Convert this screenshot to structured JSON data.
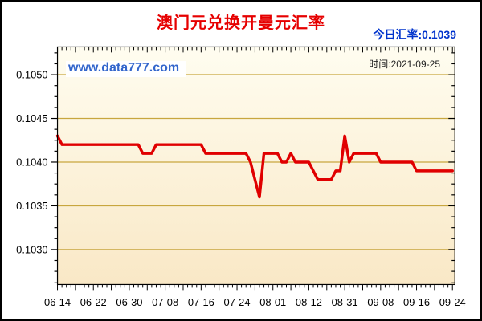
{
  "header": {
    "title": "澳门元兑换开曼元汇率",
    "today_rate_label": "今日汇率:",
    "today_rate_value": "0.1039"
  },
  "plot": {
    "watermark": "www.data777.com",
    "time_label": "时间:2021-09-25"
  },
  "colors": {
    "title": "#e60000",
    "today_rate": "#0033cc",
    "watermark": "#3366cc",
    "line": "#e00000",
    "grid": "#c8a63e",
    "axis": "#000000",
    "plot_bg_top": "#fffdf0",
    "plot_bg_bottom": "#f9e8c6",
    "time_label": "#222222"
  },
  "chart_data": {
    "type": "line",
    "title": "澳门元兑换开曼元汇率",
    "xlabel": "",
    "ylabel": "",
    "legend": "none",
    "grid": "horizontal-only",
    "x_labels": [
      "06-14",
      "06-22",
      "06-30",
      "07-08",
      "07-16",
      "07-24",
      "08-01",
      "08-12",
      "08-31",
      "09-08",
      "09-16",
      "09-24"
    ],
    "x_label_step": 8,
    "y_ticks": [
      0.105,
      0.1045,
      0.104,
      0.1035,
      0.103
    ],
    "ylim": [
      0.1026,
      0.10532
    ],
    "values": [
      0.1043,
      0.1042,
      0.1042,
      0.1042,
      0.1042,
      0.1042,
      0.1042,
      0.1042,
      0.1042,
      0.1042,
      0.1042,
      0.1042,
      0.1042,
      0.1042,
      0.1042,
      0.1042,
      0.1042,
      0.1042,
      0.1042,
      0.1041,
      0.1041,
      0.1041,
      0.1042,
      0.1042,
      0.1042,
      0.1042,
      0.1042,
      0.1042,
      0.1042,
      0.1042,
      0.1042,
      0.1042,
      0.1042,
      0.1041,
      0.1041,
      0.1041,
      0.1041,
      0.1041,
      0.1041,
      0.1041,
      0.1041,
      0.1041,
      0.1041,
      0.104,
      0.1038,
      0.1036,
      0.1041,
      0.1041,
      0.1041,
      0.1041,
      0.104,
      0.104,
      0.1041,
      0.104,
      0.104,
      0.104,
      0.104,
      0.1039,
      0.1038,
      0.1038,
      0.1038,
      0.1038,
      0.1039,
      0.1039,
      0.1043,
      0.104,
      0.1041,
      0.1041,
      0.1041,
      0.1041,
      0.1041,
      0.1041,
      0.104,
      0.104,
      0.104,
      0.104,
      0.104,
      0.104,
      0.104,
      0.104,
      0.1039,
      0.1039,
      0.1039,
      0.1039,
      0.1039,
      0.1039,
      0.1039,
      0.1039,
      0.1039
    ]
  }
}
